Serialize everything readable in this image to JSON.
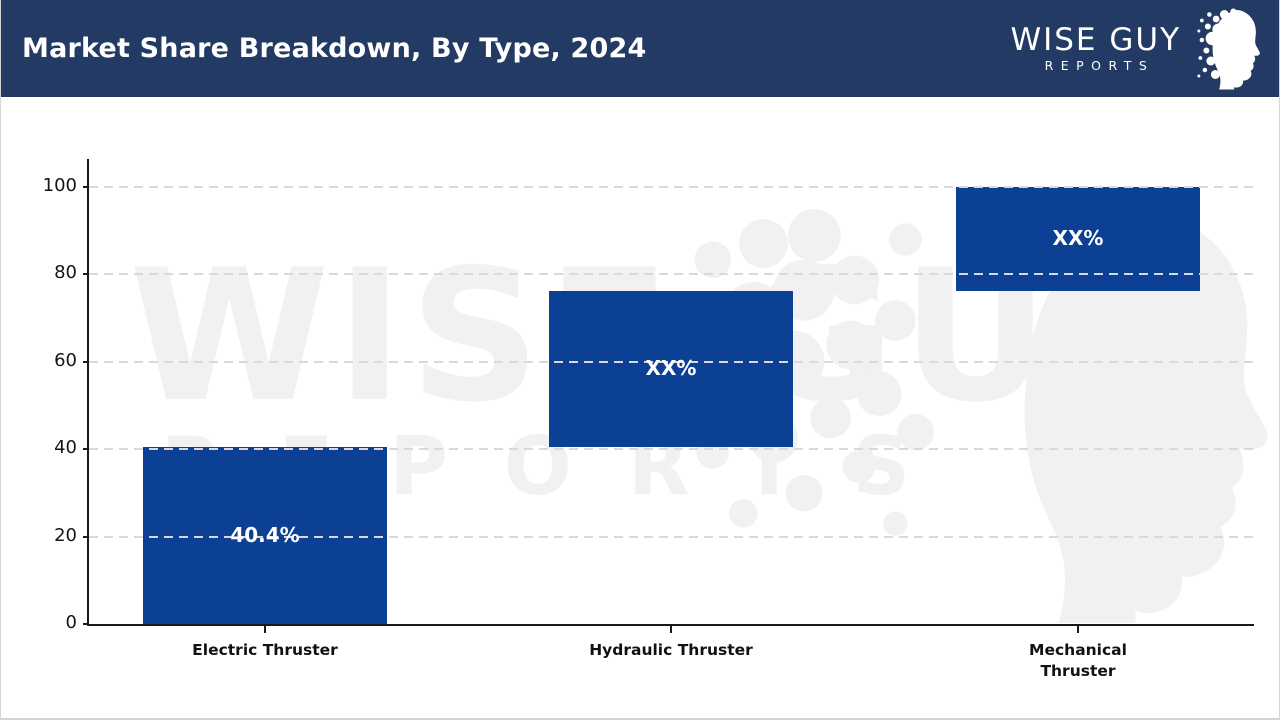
{
  "header": {
    "title": "Market Share Breakdown, By Type, 2024",
    "bg_color": "#223a64",
    "logo": {
      "wordmark": "WISE GUY",
      "subtext": "REPORTS"
    }
  },
  "watermark": {
    "line1": "WISE GUY",
    "line2": "REPORTS"
  },
  "chart_data": {
    "type": "bar",
    "subtype": "stacked-waterfall",
    "title": "Market Share Breakdown, By Type, 2024",
    "categories": [
      "Electric Thruster",
      "Hydraulic Thruster",
      "Mechanical Thruster"
    ],
    "categories_display": [
      [
        "Electric Thruster"
      ],
      [
        "Hydraulic Thruster"
      ],
      [
        "Mechanical",
        "Thruster"
      ]
    ],
    "segments": [
      {
        "category": "Electric Thruster",
        "label": "40.4%",
        "start": 0,
        "end": 40.4,
        "value": 40.4
      },
      {
        "category": "Hydraulic Thruster",
        "label": "XX%",
        "start": 40.4,
        "end": 76.2,
        "value_est": 35.8
      },
      {
        "category": "Mechanical Thruster",
        "label": "XX%",
        "start": 76.2,
        "end": 100,
        "value_est": 23.8
      }
    ],
    "ylim": [
      0,
      106
    ],
    "yticks": [
      0,
      20,
      40,
      60,
      80,
      100
    ],
    "xlabel": "",
    "ylabel": "",
    "grid": "horizontal-dashed-above-bars",
    "grid_color": "#d9d9d9",
    "bar_color": "#0c4094",
    "bar_label_color": "#ffffff",
    "axis_color": "#1a1a1a",
    "legend": "none"
  }
}
